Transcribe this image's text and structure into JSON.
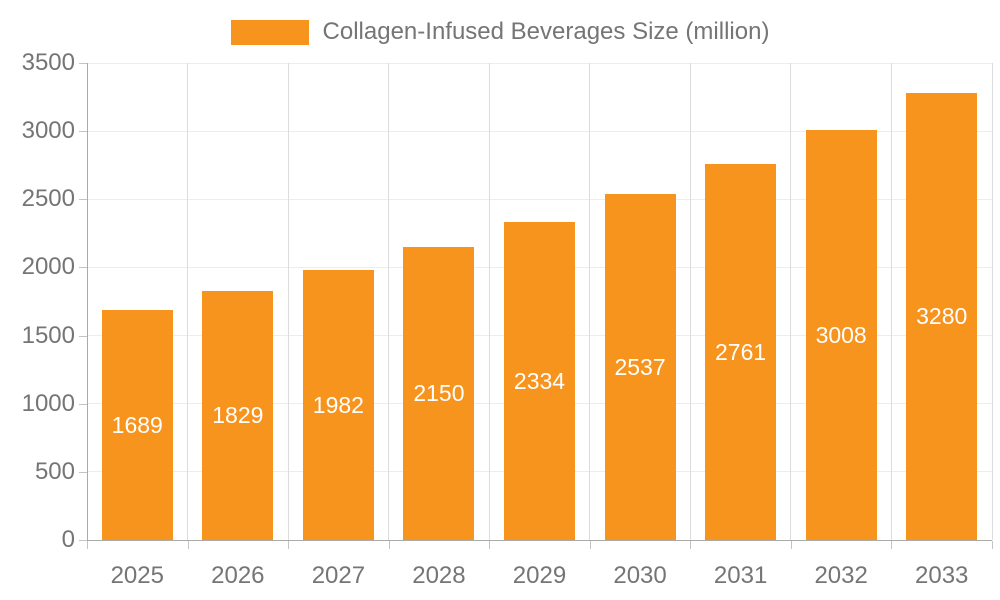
{
  "chart_data": {
    "type": "bar",
    "title": "Collagen-Infused Beverages Size (million)",
    "legend": {
      "label": "Collagen-Infused Beverages Size (million)",
      "position": "top"
    },
    "categories": [
      "2025",
      "2026",
      "2027",
      "2028",
      "2029",
      "2030",
      "2031",
      "2032",
      "2033"
    ],
    "series": [
      {
        "name": "Collagen-Infused Beverages Size (million)",
        "values": [
          1689,
          1829,
          1982,
          2150,
          2334,
          2537,
          2761,
          3008,
          3280
        ]
      }
    ],
    "xlabel": "",
    "ylabel": "",
    "ylim": [
      0,
      3500
    ],
    "yticks": [
      0,
      500,
      1000,
      1500,
      2000,
      2500,
      3000,
      3500
    ],
    "grid": {
      "horizontal": true,
      "vertical": true
    },
    "bar_labels_inside": true,
    "colors": {
      "bar": "#f7941e",
      "bar_value_label": "#ffffff",
      "axis_text": "#757575",
      "axis_line": "#aaaaaa",
      "tick_line": "#c4c4c4",
      "grid_horizontal": "#ededed",
      "grid_vertical": "#dcdcdc",
      "background": "#ffffff"
    }
  }
}
